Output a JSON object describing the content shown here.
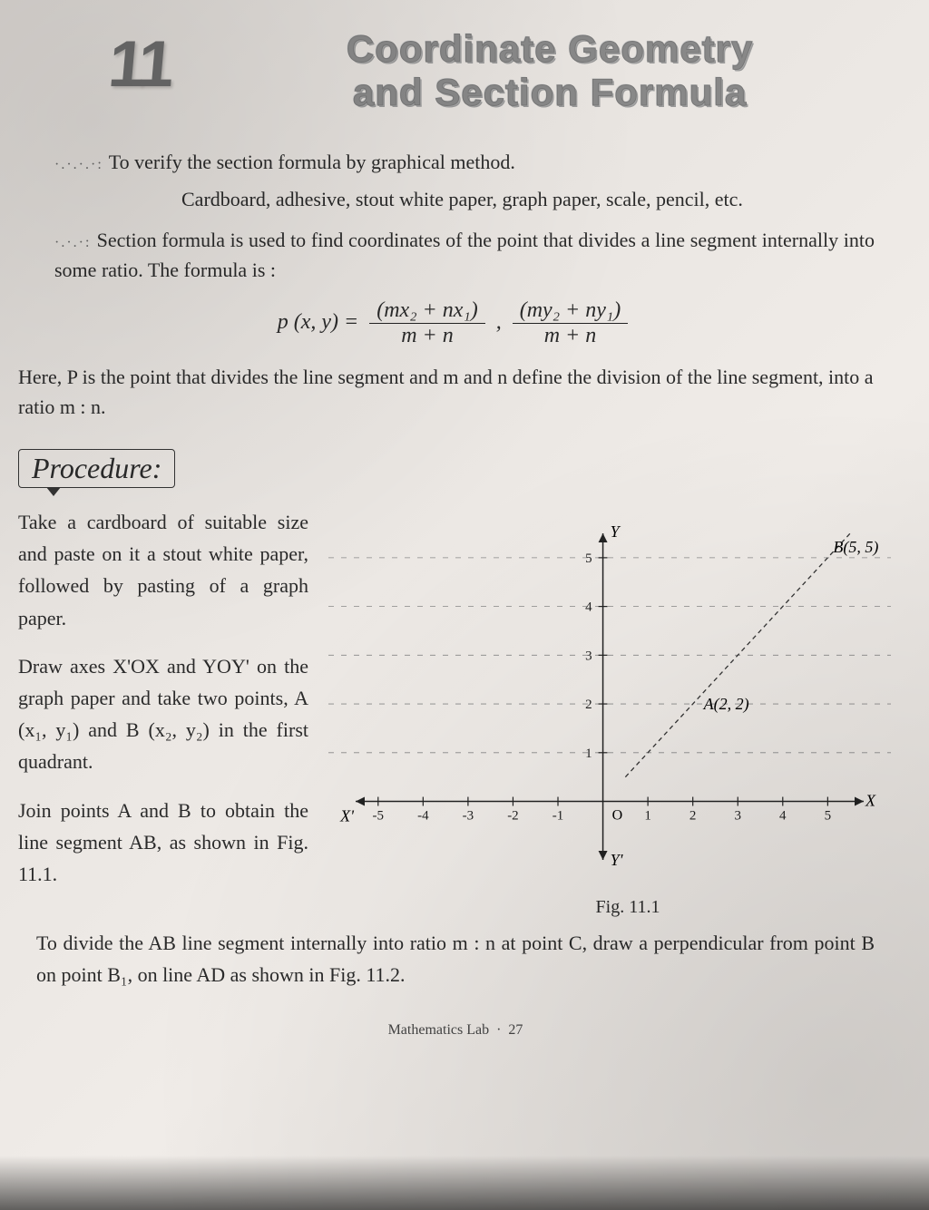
{
  "chapter": {
    "number": "11",
    "title_line1": "Coordinate Geometry",
    "title_line2": "and Section Formula"
  },
  "objective": {
    "prefix": "To verify the section formula by graphical method."
  },
  "materials": "Cardboard, adhesive, stout white paper, graph paper, scale, pencil, etc.",
  "prereq_intro": "Section formula is used to find coordinates of the point that divides a line segment internally into some ratio. The formula is :",
  "formula": {
    "lhs": "p (x, y) =",
    "num1": "(mx₂ + nx₁)",
    "den1": "m + n",
    "sep": ",",
    "num2": "(my₂ + ny₁)",
    "den2": "m + n"
  },
  "prereq_post": "Here, P is the point that divides the line segment and m and n define the division of the line segment, into a ratio m : n.",
  "procedure_label": "Procedure:",
  "steps": {
    "s1": "Take a cardboard of suitable size and paste on it a stout white paper, followed by pasting of a graph paper.",
    "s2": "Draw axes X'OX and YOY' on the graph paper and take two points, A (x₁, y₁) and B (x₂, y₂) in the first quadrant.",
    "s3": "Join points A and B to obtain the line segment AB, as shown in Fig. 11.1."
  },
  "figure": {
    "caption": "Fig. 11.1",
    "points": {
      "A": {
        "x": 2,
        "y": 2,
        "label": "A(2, 2)"
      },
      "B": {
        "x": 5,
        "y": 5,
        "label": "B(5, 5)"
      }
    },
    "axis": {
      "x_label_pos": "X",
      "x_label_neg": "X'",
      "y_label_pos": "Y",
      "y_label_neg": "Y'",
      "origin": "O",
      "x_ticks": [
        -5,
        -4,
        -3,
        -2,
        -1,
        1,
        2,
        3,
        4,
        5
      ],
      "y_ticks": [
        1,
        2,
        3,
        4,
        5
      ],
      "xlim": [
        -5.5,
        5.8
      ],
      "ylim": [
        -1.2,
        5.5
      ]
    },
    "colors": {
      "axis": "#222222",
      "gridline": "#888888",
      "line": "#333333",
      "background": "transparent"
    },
    "stroke_width": 1.5
  },
  "step4": "To divide the AB line segment internally into ratio m : n at point C, draw a perpendicular from point B on point B₁, on line AD as shown in Fig. 11.2.",
  "footer": {
    "label": "Mathematics Lab",
    "page": "27"
  }
}
